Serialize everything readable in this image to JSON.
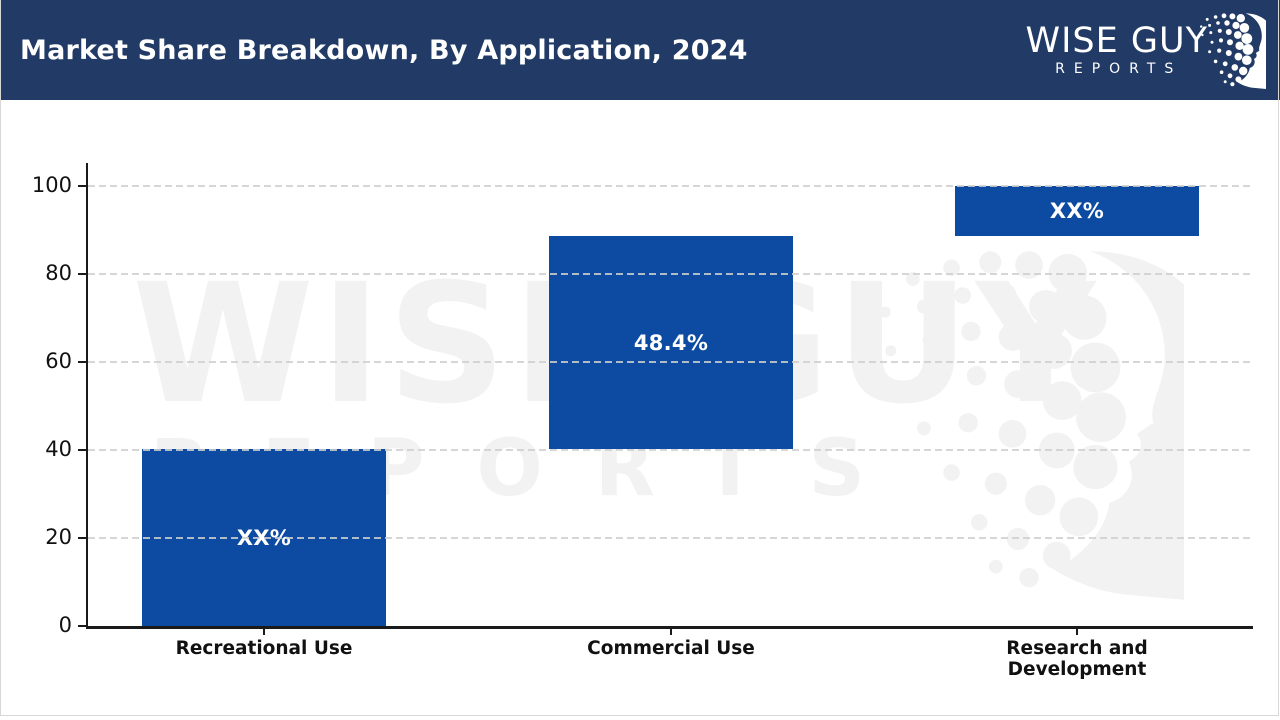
{
  "header": {
    "title": "Market Share Breakdown, By Application, 2024",
    "logo": {
      "primary": "WISE GUY",
      "secondary": "REPORTS"
    }
  },
  "watermark": {
    "line1": "WISE GUY",
    "line2": "REPORTS"
  },
  "colors": {
    "header_bg": "#213A66",
    "bar": "#0C4BA1",
    "gridline": "#cfcfcf",
    "axis": "#1a1a1a",
    "watermark": "#f2f2f2",
    "title_text": "#ffffff",
    "bar_label_text": "#ffffff"
  },
  "chart_data": {
    "type": "bar",
    "variant": "stacked-waterfall",
    "title": "Market Share Breakdown, By Application, 2024",
    "categories": [
      "Recreational Use",
      "Commercial Use",
      "Research and Development"
    ],
    "bars": [
      {
        "category": "Recreational Use",
        "label": "XX%",
        "start": 0,
        "end": 40.2,
        "value_est": 40.2
      },
      {
        "category": "Commercial Use",
        "label": "48.4%",
        "start": 40.2,
        "end": 88.6,
        "value_est": 48.4
      },
      {
        "category": "Research and Development",
        "label": "XX%",
        "start": 88.6,
        "end": 100,
        "value_est": 11.4
      }
    ],
    "xlabel": "",
    "ylabel": "",
    "ylim": [
      0,
      100
    ],
    "yticks": [
      0,
      20,
      40,
      60,
      80,
      100
    ],
    "grid": "horizontal-dashed",
    "legend": null,
    "bar_color": "#0C4BA1"
  }
}
